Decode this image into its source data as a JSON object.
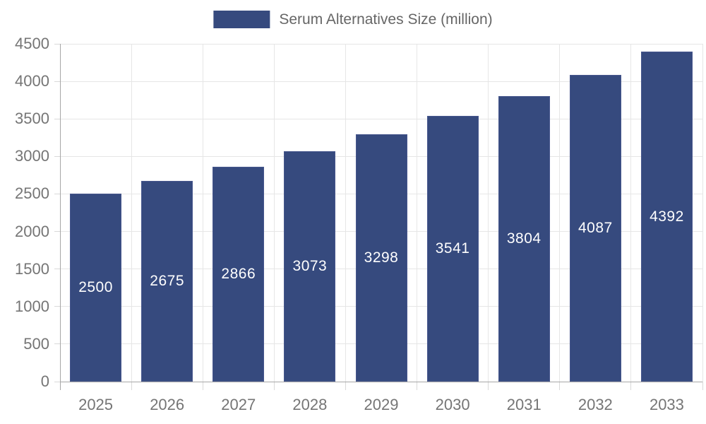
{
  "chart_data": {
    "type": "bar",
    "title": "",
    "legend": "Serum Alternatives Size (million)",
    "legend_position": "top",
    "categories": [
      "2025",
      "2026",
      "2027",
      "2028",
      "2029",
      "2030",
      "2031",
      "2032",
      "2033"
    ],
    "series": [
      {
        "name": "Serum Alternatives Size (million)",
        "values": [
          2500,
          2675,
          2866,
          3073,
          3298,
          3541,
          3804,
          4087,
          4392
        ]
      }
    ],
    "xlabel": "",
    "ylabel": "",
    "ylim": [
      0,
      4500
    ],
    "yticks": [
      0,
      500,
      1000,
      1500,
      2000,
      2500,
      3000,
      3500,
      4000,
      4500
    ],
    "grid": true,
    "colors": {
      "bar": "#364a7e",
      "bar_edge": "#47578d",
      "value_label": "#ffffff",
      "axis_label": "#757575",
      "legend_text": "#666666",
      "grid_line": "#e6e6e6",
      "tick_line": "#d9d9d9",
      "axis_line": "#a6a6a6",
      "background": "#ffffff"
    }
  }
}
